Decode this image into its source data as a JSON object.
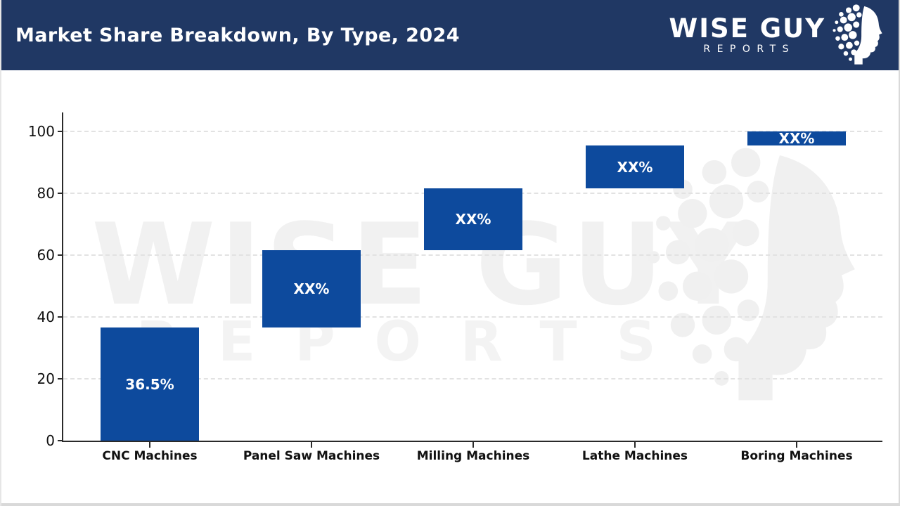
{
  "header": {
    "title": "Market Share Breakdown, By Type, 2024",
    "bg_color": "#203864",
    "logo": {
      "line1": "WISE GUY",
      "line2": "REPORTS"
    }
  },
  "watermark": {
    "line1": "WISE GUY",
    "line2": "REPORTS"
  },
  "chart_data": {
    "type": "bar",
    "subtype": "waterfall",
    "title": "Market Share Breakdown, By Type, 2024",
    "xlabel": "",
    "ylabel": "",
    "categories": [
      "CNC Machines",
      "Panel Saw Machines",
      "Milling Machines",
      "Lathe Machines",
      "Boring Machines"
    ],
    "segments": [
      {
        "category": "CNC Machines",
        "start": 0,
        "end": 36.5,
        "label": "36.5%"
      },
      {
        "category": "Panel Saw Machines",
        "start": 36.5,
        "end": 61.5,
        "label": "XX%"
      },
      {
        "category": "Milling Machines",
        "start": 61.5,
        "end": 81.5,
        "label": "XX%"
      },
      {
        "category": "Lathe Machines",
        "start": 81.5,
        "end": 95.5,
        "label": "XX%"
      },
      {
        "category": "Boring Machines",
        "start": 95.5,
        "end": 100,
        "label": "XX%"
      }
    ],
    "yticks": [
      0,
      20,
      40,
      60,
      80,
      100
    ],
    "ylim": [
      0,
      106
    ],
    "grid": "horizontal-dashed",
    "legend": "none",
    "bar_color": "#0d4a9d",
    "axis_color": "#2a2a2a",
    "grid_color": "#e2e2e2",
    "bar_label_color": "#ffffff"
  }
}
